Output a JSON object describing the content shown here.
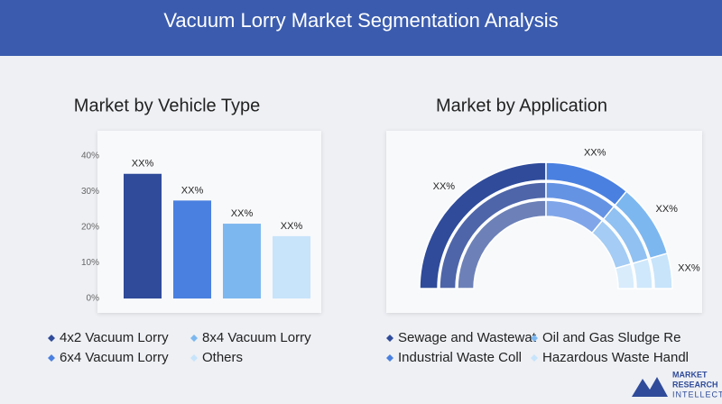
{
  "title": "Vacuum Lorry Market Segmentation Analysis",
  "logo": [
    "MARKET",
    "RESEARCH",
    "INTELLECT"
  ],
  "chart_data": [
    {
      "type": "bar",
      "title": "Market by Vehicle Type",
      "categories": [
        "4x2 Vacuum Lorry",
        "6x4 Vacuum Lorry",
        "8x4 Vacuum Lorry",
        "Others"
      ],
      "values": [
        35,
        27.5,
        21,
        17.5
      ],
      "value_labels": [
        "XX%",
        "XX%",
        "XX%",
        "XX%"
      ],
      "colors": [
        "#2f4b9a",
        "#4a80e0",
        "#7db7f0",
        "#c7e4fb"
      ],
      "ylim": [
        0,
        40
      ],
      "yticks": [
        {
          "value": 0,
          "label": "0%"
        },
        {
          "value": 10,
          "label": "10%"
        },
        {
          "value": 20,
          "label": "20%"
        },
        {
          "value": 30,
          "label": "30%"
        },
        {
          "value": 40,
          "label": "40%"
        }
      ]
    },
    {
      "type": "semi-donut",
      "title": "Market by Application",
      "categories": [
        "Sewage and Wastewat",
        "Industrial Waste Coll",
        "Oil and Gas Sludge Re",
        "Hazardous Waste Handl"
      ],
      "values": [
        50,
        22,
        19,
        9
      ],
      "value_labels": [
        "XX%",
        "XX%",
        "XX%",
        "XX%"
      ],
      "colors": [
        "#2f4b9a",
        "#4a80e0",
        "#7db7f0",
        "#c7e4fb"
      ]
    }
  ]
}
